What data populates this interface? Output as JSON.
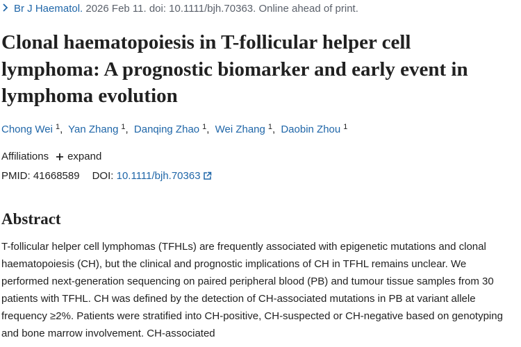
{
  "citation": {
    "journal": "Br J Haematol.",
    "details": "2026 Feb 11. doi: 10.1111/bjh.70363. Online ahead of print."
  },
  "title": "Clonal haematopoiesis in T-follicular helper cell lymphoma: A prognostic biomarker and early event in lymphoma evolution",
  "authors": [
    {
      "name": "Chong Wei",
      "affiliation": "1"
    },
    {
      "name": "Yan Zhang",
      "affiliation": "1"
    },
    {
      "name": "Danqing Zhao",
      "affiliation": "1"
    },
    {
      "name": "Wei Zhang",
      "affiliation": "1"
    },
    {
      "name": "Daobin Zhou",
      "affiliation": "1"
    }
  ],
  "author_separator": ",",
  "affiliations": {
    "label": "Affiliations",
    "toggle": "expand"
  },
  "identifiers": {
    "pmid_label": "PMID:",
    "pmid": "41668589",
    "doi_label": "DOI:",
    "doi": "10.1111/bjh.70363"
  },
  "abstract": {
    "heading": "Abstract",
    "text": "T-follicular helper cell lymphomas (TFHLs) are frequently associated with epigenetic mutations and clonal haematopoiesis (CH), but the clinical and prognostic implications of CH in TFHL remains unclear. We performed next-generation sequencing on paired peripheral blood (PB) and tumour tissue samples from 30 patients with TFHL. CH was defined by the detection of CH-associated mutations in PB at variant allele frequency ≥2%. Patients were stratified into CH-positive, CH-suspected or CH-negative based on genotyping and bone marrow involvement. CH-associated"
  }
}
